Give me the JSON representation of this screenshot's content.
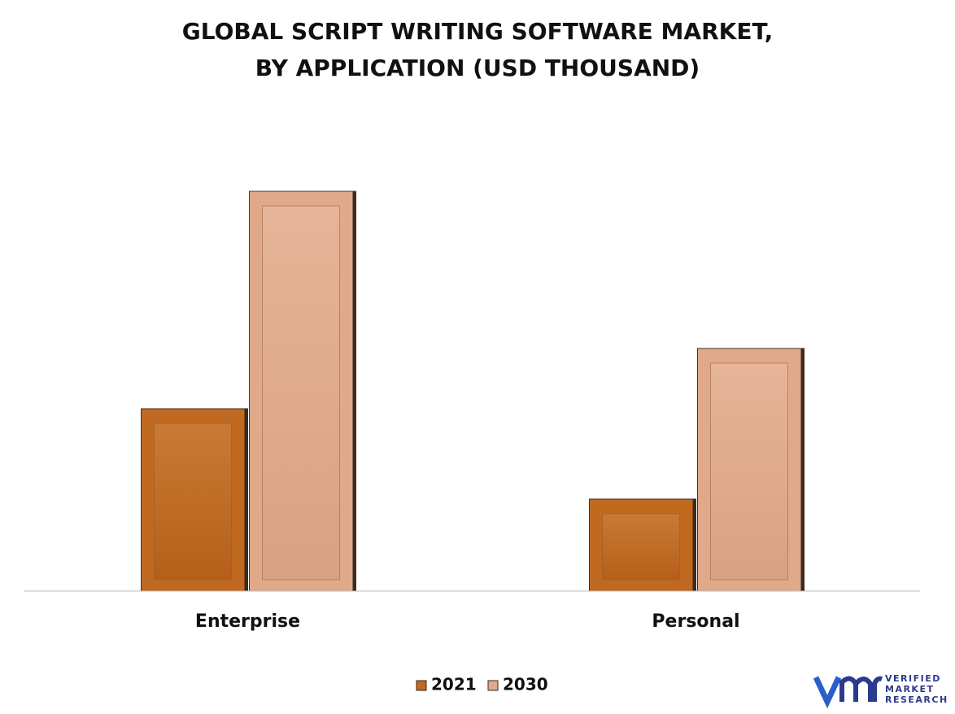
{
  "chart_data": {
    "type": "bar",
    "title": [
      "GLOBAL SCRIPT WRITING SOFTWARE MARKET,",
      "BY APPLICATION (USD THOUSAND)"
    ],
    "categories": [
      "Enterprise",
      "Personal"
    ],
    "series": [
      {
        "name": "2021",
        "color": "#c0691f",
        "values": [
          224,
          113
        ]
      },
      {
        "name": "2030",
        "color": "#e0a98a",
        "values": [
          491,
          298
        ]
      }
    ],
    "ylim": [
      0,
      500
    ],
    "legend": "bottom"
  },
  "logo": {
    "lines": [
      "VERIFIED",
      "MARKET",
      "RESEARCH"
    ]
  }
}
